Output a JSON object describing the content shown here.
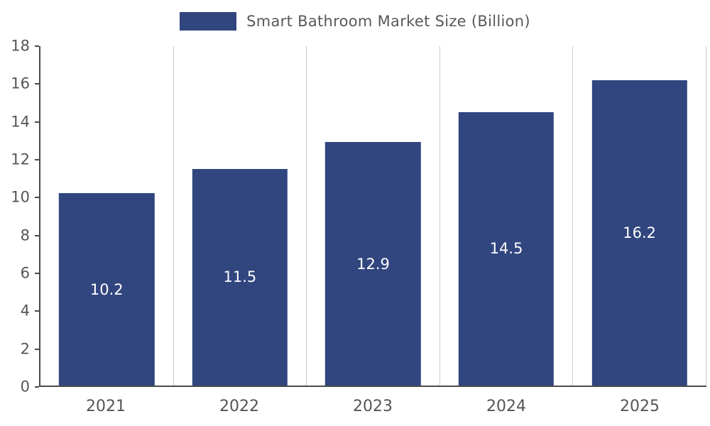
{
  "legend": {
    "label": "Smart Bathroom Market Size (Billion)",
    "swatch_color": "#31467f"
  },
  "chart_data": {
    "type": "bar",
    "title": "Smart Bathroom Market Size (Billion)",
    "categories": [
      "2021",
      "2022",
      "2023",
      "2024",
      "2025"
    ],
    "values": [
      10.2,
      11.5,
      12.9,
      14.5,
      16.2
    ],
    "xlabel": "",
    "ylabel": "",
    "ylim": [
      0,
      18
    ],
    "yticks": [
      0,
      2,
      4,
      6,
      8,
      10,
      12,
      14,
      16,
      18
    ],
    "bar_color": "#31467f",
    "value_label_color": "#ffffff",
    "grid": "vertical-category-boundaries",
    "legend_position": "top"
  }
}
